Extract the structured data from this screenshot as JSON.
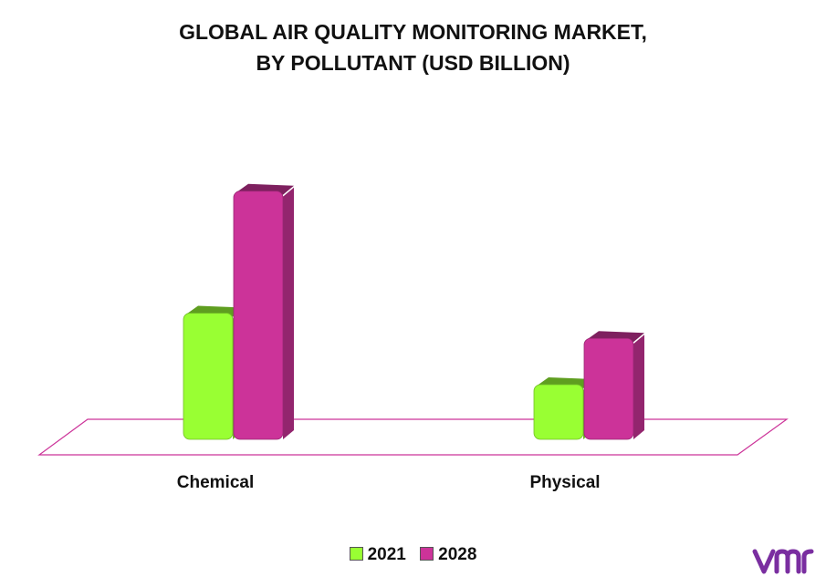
{
  "chart_data": {
    "type": "bar",
    "title": "GLOBAL AIR QUALITY MONITORING MARKET,",
    "subtitle": "BY POLLUTANT (USD BILLION)",
    "categories": [
      "Chemical",
      "Physical"
    ],
    "series": [
      {
        "name": "2021",
        "values": [
          3.0,
          1.3
        ]
      },
      {
        "name": "2028",
        "values": [
          5.9,
          2.4
        ]
      }
    ],
    "ylim": [
      0,
      6.5
    ],
    "grid": false,
    "legend": "bottom",
    "colors": {
      "2021": "#99ff33",
      "2028": "#cc3399",
      "floor": "#cc3399"
    }
  },
  "legend": {
    "items": [
      "2021",
      "2028"
    ]
  },
  "brand": {
    "icon": "vmr-logo-icon",
    "color": "#7a2ea0"
  }
}
